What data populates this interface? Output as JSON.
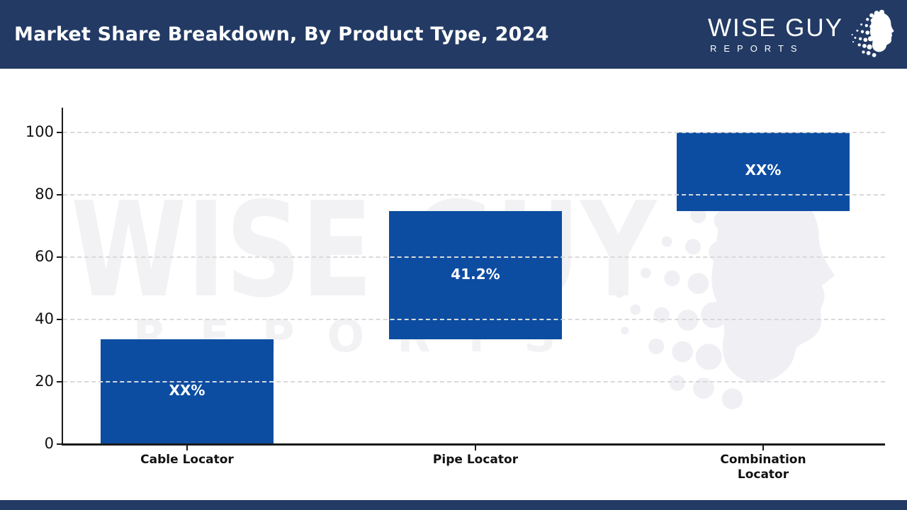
{
  "header": {
    "title": "Market Share Breakdown, By Product Type, 2024",
    "logo": {
      "line1": "WISE GUY",
      "line2": "REPORTS"
    }
  },
  "watermark": {
    "line1": "WISE GUY",
    "line2": "REPORTS"
  },
  "chart_data": {
    "type": "bar",
    "subtype": "floating-segment-bars",
    "title": "Market Share Breakdown, By Product Type, 2024",
    "categories": [
      "Cable Locator",
      "Pipe Locator",
      "Combination Locator"
    ],
    "bars": [
      {
        "category": "Cable Locator",
        "start": 0,
        "end": 33.6,
        "label": "XX%"
      },
      {
        "category": "Pipe Locator",
        "start": 33.6,
        "end": 74.8,
        "label": "41.2%"
      },
      {
        "category": "Combination Locator",
        "start": 74.8,
        "end": 100,
        "label": "XX%"
      }
    ],
    "yticks": [
      0,
      20,
      40,
      60,
      80,
      100
    ],
    "ylim": [
      0,
      107
    ],
    "xlabel": "",
    "ylabel": "",
    "grid": true,
    "legend": false,
    "bar_color": "#0C4DA2",
    "value_label_color": "#FFFFFF"
  },
  "colors": {
    "header_bg": "#223A64",
    "footer_bg": "#223A64",
    "bar": "#0C4DA2",
    "gridline": "#D9D9D9",
    "axis": "#1A1A1A",
    "watermark": "#F2F2F5"
  }
}
